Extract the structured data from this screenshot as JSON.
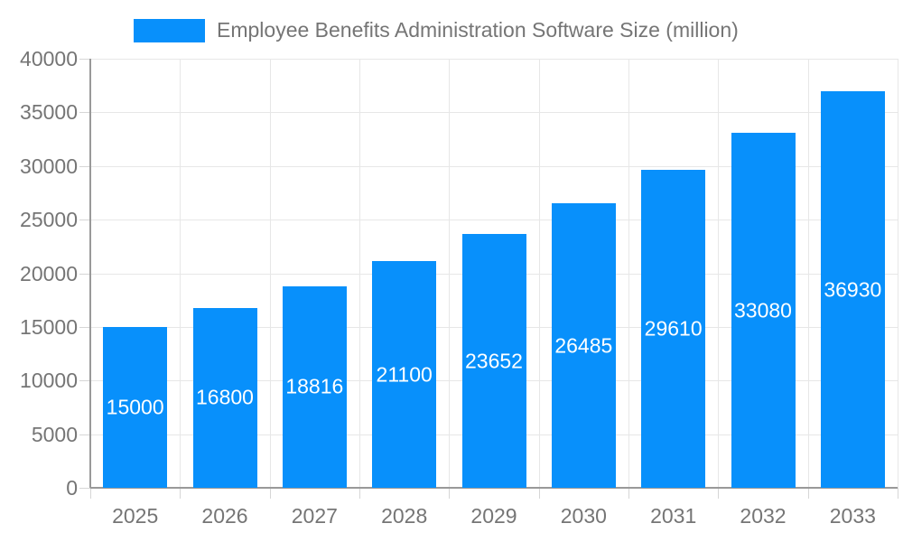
{
  "chart_data": {
    "type": "bar",
    "title": "Employee Benefits Administration Software Size (million)",
    "categories": [
      "2025",
      "2026",
      "2027",
      "2028",
      "2029",
      "2030",
      "2031",
      "2032",
      "2033"
    ],
    "values": [
      15000,
      16800,
      18816,
      21100,
      23652,
      26485,
      29610,
      33080,
      36930
    ],
    "xlabel": "",
    "ylabel": "",
    "ylim": [
      0,
      40000
    ],
    "ytick_step": 5000,
    "ytick_labels": [
      "0",
      "5000",
      "10000",
      "15000",
      "20000",
      "25000",
      "30000",
      "35000",
      "40000"
    ],
    "grid": true,
    "legend_position": "top",
    "legend_entries": [
      "Employee Benefits Administration Software Size (million)"
    ],
    "colors": {
      "bar": "#0890FB",
      "bar_value_text": "#ffffff",
      "axis_text": "#757575",
      "legend_text": "#757575",
      "grid_line": "#e7e7e7",
      "axis_line": "#999999",
      "tick_mark": "#d6d6d6",
      "background": "#ffffff"
    }
  }
}
